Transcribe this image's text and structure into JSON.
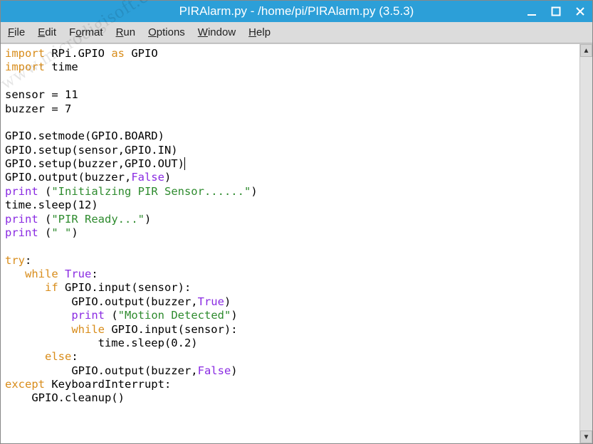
{
  "titlebar": {
    "text": "PIRAlarm.py - /home/pi/PIRAlarm.py (3.5.3)"
  },
  "menubar": {
    "items": [
      {
        "label": "File",
        "accel": "F",
        "rest": "ile"
      },
      {
        "label": "Edit",
        "accel": "E",
        "rest": "dit"
      },
      {
        "label": "Format",
        "accel": "",
        "pre": "F",
        "mid_accel": "o",
        "post": "rmat"
      },
      {
        "label": "Run",
        "accel": "R",
        "rest": "un"
      },
      {
        "label": "Options",
        "accel": "O",
        "rest": "ptions"
      },
      {
        "label": "Window",
        "accel": "W",
        "rest": "indow"
      },
      {
        "label": "Help",
        "accel": "H",
        "rest": "elp"
      }
    ]
  },
  "watermark": "www.microdigisoft.com - 3 pm",
  "code": {
    "lines": [
      [
        {
          "c": "kw",
          "t": "import"
        },
        {
          "t": " RPi.GPIO "
        },
        {
          "c": "kw",
          "t": "as"
        },
        {
          "t": " GPIO"
        }
      ],
      [
        {
          "c": "kw",
          "t": "import"
        },
        {
          "t": " time"
        }
      ],
      [
        {
          "t": ""
        }
      ],
      [
        {
          "t": "sensor = 11"
        }
      ],
      [
        {
          "t": "buzzer = 7"
        }
      ],
      [
        {
          "t": ""
        }
      ],
      [
        {
          "t": "GPIO.setmode(GPIO.BOARD)"
        }
      ],
      [
        {
          "t": "GPIO.setup(sensor,GPIO.IN)"
        }
      ],
      [
        {
          "t": "GPIO.setup(buzzer,GPIO.OUT)"
        },
        {
          "c": "cursor",
          "t": ""
        }
      ],
      [
        {
          "t": "GPIO.output(buzzer,"
        },
        {
          "c": "bi",
          "t": "False"
        },
        {
          "t": ")"
        }
      ],
      [
        {
          "c": "bi",
          "t": "print"
        },
        {
          "t": " ("
        },
        {
          "c": "str",
          "t": "\"Initialzing PIR Sensor......\""
        },
        {
          "t": ")"
        }
      ],
      [
        {
          "t": "time.sleep(12)"
        }
      ],
      [
        {
          "c": "bi",
          "t": "print"
        },
        {
          "t": " ("
        },
        {
          "c": "str",
          "t": "\"PIR Ready...\""
        },
        {
          "t": ")"
        }
      ],
      [
        {
          "c": "bi",
          "t": "print"
        },
        {
          "t": " ("
        },
        {
          "c": "str",
          "t": "\" \""
        },
        {
          "t": ")"
        }
      ],
      [
        {
          "t": ""
        }
      ],
      [
        {
          "c": "kw",
          "t": "try"
        },
        {
          "t": ":"
        }
      ],
      [
        {
          "t": "   "
        },
        {
          "c": "kw",
          "t": "while"
        },
        {
          "t": " "
        },
        {
          "c": "bi",
          "t": "True"
        },
        {
          "t": ":"
        }
      ],
      [
        {
          "t": "      "
        },
        {
          "c": "kw",
          "t": "if"
        },
        {
          "t": " GPIO.input(sensor):"
        }
      ],
      [
        {
          "t": "          GPIO.output(buzzer,"
        },
        {
          "c": "bi",
          "t": "True"
        },
        {
          "t": ")"
        }
      ],
      [
        {
          "t": "          "
        },
        {
          "c": "bi",
          "t": "print"
        },
        {
          "t": " ("
        },
        {
          "c": "str",
          "t": "\"Motion Detected\""
        },
        {
          "t": ")"
        }
      ],
      [
        {
          "t": "          "
        },
        {
          "c": "kw",
          "t": "while"
        },
        {
          "t": " GPIO.input(sensor):"
        }
      ],
      [
        {
          "t": "              time.sleep(0.2)"
        }
      ],
      [
        {
          "t": "      "
        },
        {
          "c": "kw",
          "t": "else"
        },
        {
          "t": ":"
        }
      ],
      [
        {
          "t": "          GPIO.output(buzzer,"
        },
        {
          "c": "bi",
          "t": "False"
        },
        {
          "t": ")"
        }
      ],
      [
        {
          "c": "kw",
          "t": "except"
        },
        {
          "t": " KeyboardInterrupt:"
        }
      ],
      [
        {
          "t": "    GPIO.cleanup()"
        }
      ]
    ]
  }
}
